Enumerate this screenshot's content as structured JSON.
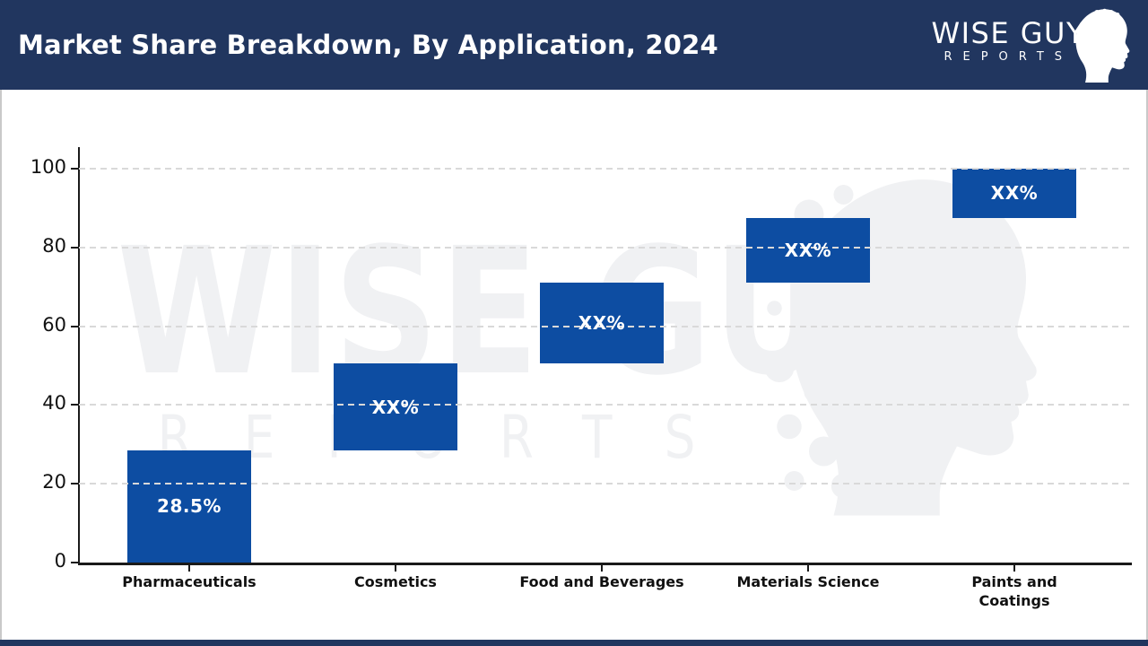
{
  "header": {
    "title": "Market Share Breakdown, By Application, 2024",
    "logo": {
      "line1": "WISE GUY",
      "line2": "REPORTS"
    }
  },
  "watermark": {
    "line1": "WISE GUY",
    "line2": "REPORTS"
  },
  "colors": {
    "header_bg": "#21365F",
    "bar": "#0D4DA2",
    "gridline": "#D9D9D9",
    "axis": "#1A1A1A",
    "bar_label_text": "#FFFFFF",
    "watermark": "#F0F1F3"
  },
  "chart_data": {
    "type": "bar",
    "subtype": "waterfall",
    "title": "Market Share Breakdown, By Application, 2024",
    "xlabel": "",
    "ylabel": "",
    "ylim": [
      0,
      100
    ],
    "y_ticks": [
      0,
      20,
      40,
      60,
      80,
      100
    ],
    "grid": true,
    "legend": false,
    "bar_color": "#0D4DA2",
    "categories": [
      "Pharmaceuticals",
      "Cosmetics",
      "Food and Beverages",
      "Materials Science",
      "Paints and\nCoatings"
    ],
    "segments": [
      {
        "category": "Pharmaceuticals",
        "start": 0,
        "end": 28.5,
        "value": 28.5,
        "label": "28.5%"
      },
      {
        "category": "Cosmetics",
        "start": 28.5,
        "end": 50.5,
        "value": 22.0,
        "label": "XX%"
      },
      {
        "category": "Food and Beverages",
        "start": 50.5,
        "end": 71.0,
        "value": 20.5,
        "label": "XX%"
      },
      {
        "category": "Materials Science",
        "start": 71.0,
        "end": 87.5,
        "value": 16.5,
        "label": "XX%"
      },
      {
        "category": "Paints and Coatings",
        "start": 87.5,
        "end": 100.0,
        "value": 12.5,
        "label": "XX%"
      }
    ]
  }
}
